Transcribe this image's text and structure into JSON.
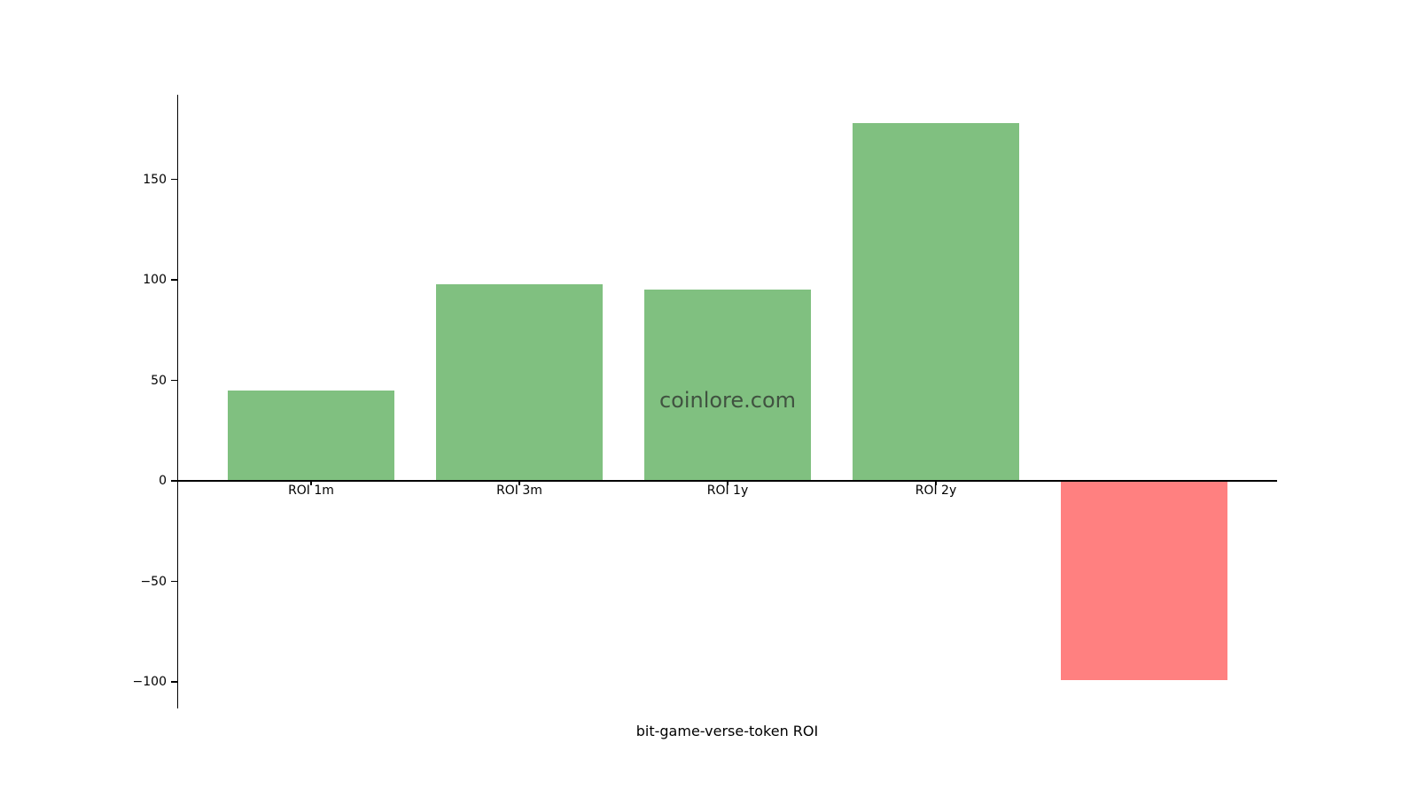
{
  "chart_data": {
    "type": "bar",
    "title": "bit-game-verse-token ROI",
    "watermark": "coinlore.com",
    "categories": [
      "ROI 1m",
      "ROI 3m",
      "ROI 1y",
      "ROI 2y",
      ""
    ],
    "values": [
      45,
      98,
      95,
      178,
      -99
    ],
    "xlabel": "bit-game-verse-token ROI",
    "ylabel": "",
    "yticks": [
      150,
      100,
      50,
      0,
      -50,
      -100
    ],
    "ylim": [
      -113,
      193
    ],
    "grid": false,
    "legend": "none",
    "positive_color": "#80c080",
    "negative_color": "#ff8080",
    "axis_color": "#000000",
    "watermark_color": "#282828"
  }
}
